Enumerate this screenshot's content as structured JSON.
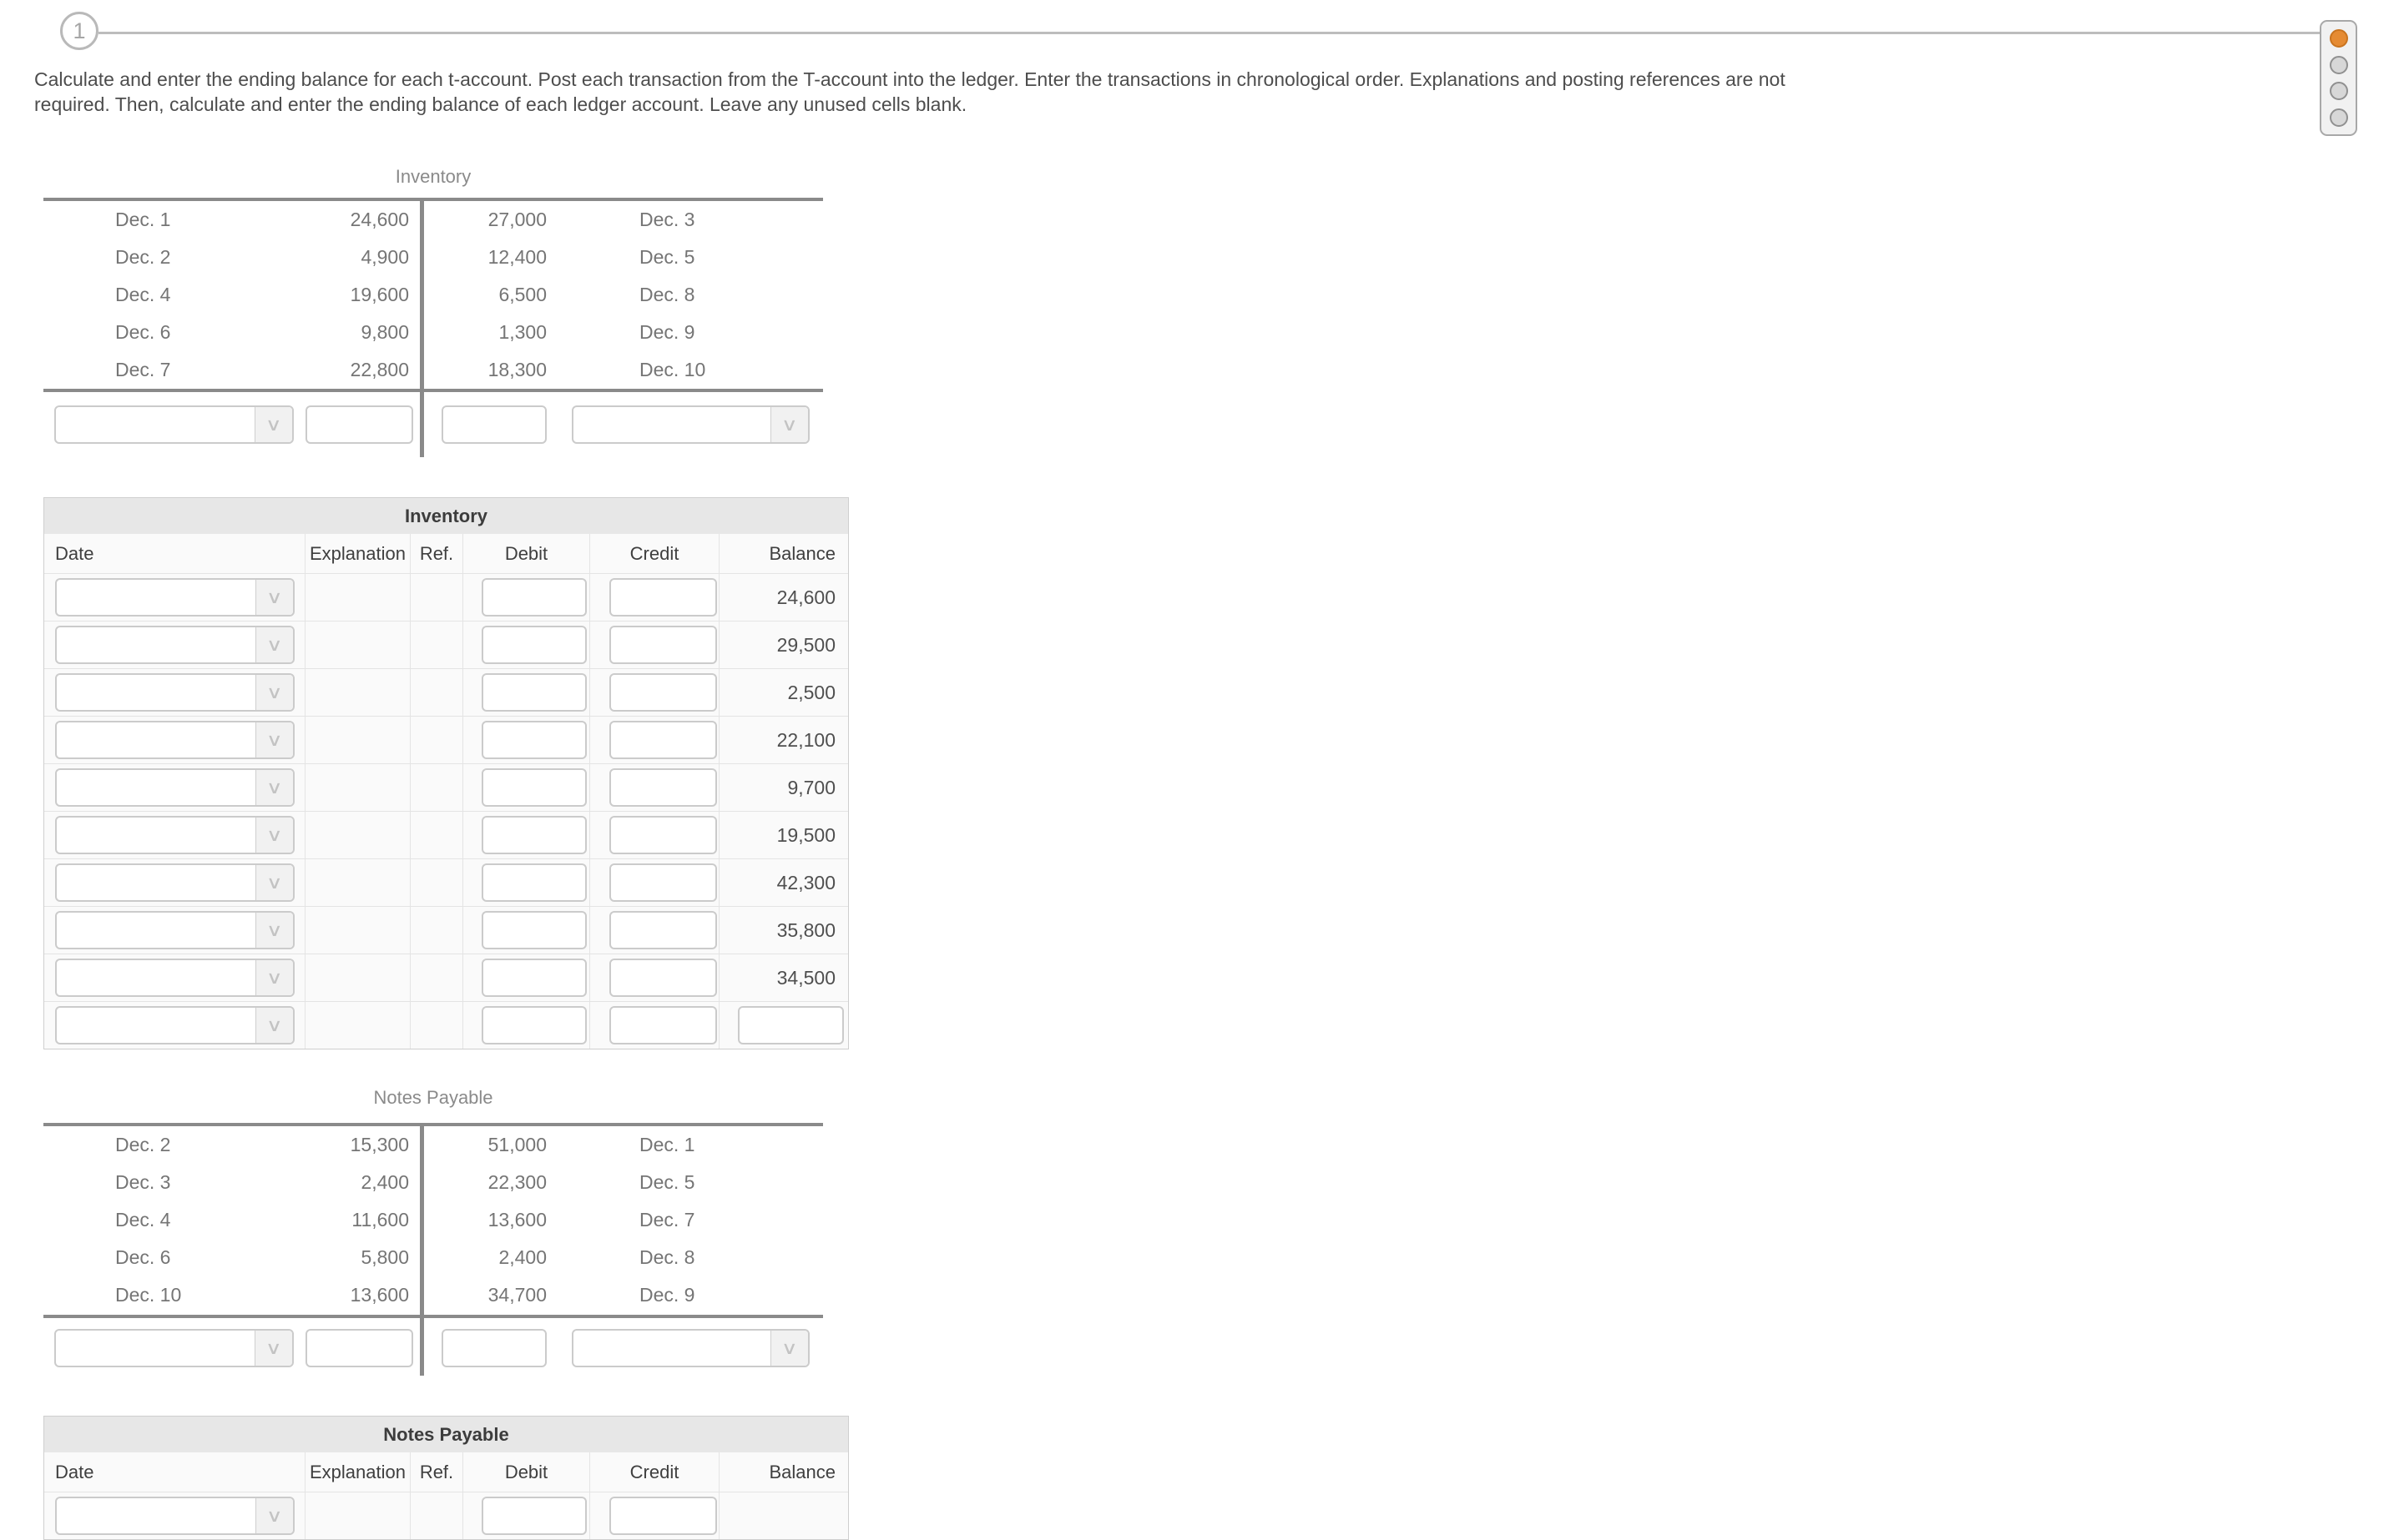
{
  "step": {
    "number": "1"
  },
  "instructions": {
    "line1": "Calculate and enter the ending balance for each t-account. Post each transaction from the T-account into the ledger. Enter the transactions in chronological order. Explanations and posting references are not",
    "line2": "required. Then, calculate and enter the ending balance of each ledger account. Leave any unused cells blank."
  },
  "progress_panel": {
    "total_steps": 4,
    "active_step": 1
  },
  "colors": {
    "accent_orange": "#e58b33"
  },
  "t_accounts": [
    {
      "title": "Inventory",
      "rows": [
        {
          "left_date": "Dec. 1",
          "left_amount": "24,600",
          "right_amount": "27,000",
          "right_date": "Dec. 3"
        },
        {
          "left_date": "Dec. 2",
          "left_amount": "4,900",
          "right_amount": "12,400",
          "right_date": "Dec. 5"
        },
        {
          "left_date": "Dec. 4",
          "left_amount": "19,600",
          "right_amount": "6,500",
          "right_date": "Dec. 8"
        },
        {
          "left_date": "Dec. 6",
          "left_amount": "9,800",
          "right_amount": "1,300",
          "right_date": "Dec. 9"
        },
        {
          "left_date": "Dec. 7",
          "left_amount": "22,800",
          "right_amount": "18,300",
          "right_date": "Dec. 10"
        }
      ]
    },
    {
      "title": "Notes Payable",
      "rows": [
        {
          "left_date": "Dec. 2",
          "left_amount": "15,300",
          "right_amount": "51,000",
          "right_date": "Dec. 1"
        },
        {
          "left_date": "Dec. 3",
          "left_amount": "2,400",
          "right_amount": "22,300",
          "right_date": "Dec. 5"
        },
        {
          "left_date": "Dec. 4",
          "left_amount": "11,600",
          "right_amount": "13,600",
          "right_date": "Dec. 7"
        },
        {
          "left_date": "Dec. 6",
          "left_amount": "5,800",
          "right_amount": "2,400",
          "right_date": "Dec. 8"
        },
        {
          "left_date": "Dec. 10",
          "left_amount": "13,600",
          "right_amount": "34,700",
          "right_date": "Dec. 9"
        }
      ]
    }
  ],
  "ledgers": [
    {
      "title": "Inventory",
      "headers": [
        "Date",
        "Explanation",
        "Ref.",
        "Debit",
        "Credit",
        "Balance"
      ],
      "rows": [
        {
          "balance": "24,600",
          "balance_input": false
        },
        {
          "balance": "29,500",
          "balance_input": false
        },
        {
          "balance": "2,500",
          "balance_input": false
        },
        {
          "balance": "22,100",
          "balance_input": false
        },
        {
          "balance": "9,700",
          "balance_input": false
        },
        {
          "balance": "19,500",
          "balance_input": false
        },
        {
          "balance": "42,300",
          "balance_input": false
        },
        {
          "balance": "35,800",
          "balance_input": false
        },
        {
          "balance": "34,500",
          "balance_input": false
        },
        {
          "balance": "",
          "balance_input": true
        }
      ]
    },
    {
      "title": "Notes Payable",
      "headers": [
        "Date",
        "Explanation",
        "Ref.",
        "Debit",
        "Credit",
        "Balance"
      ],
      "rows": [
        {
          "balance": "",
          "balance_input": false
        }
      ]
    }
  ]
}
